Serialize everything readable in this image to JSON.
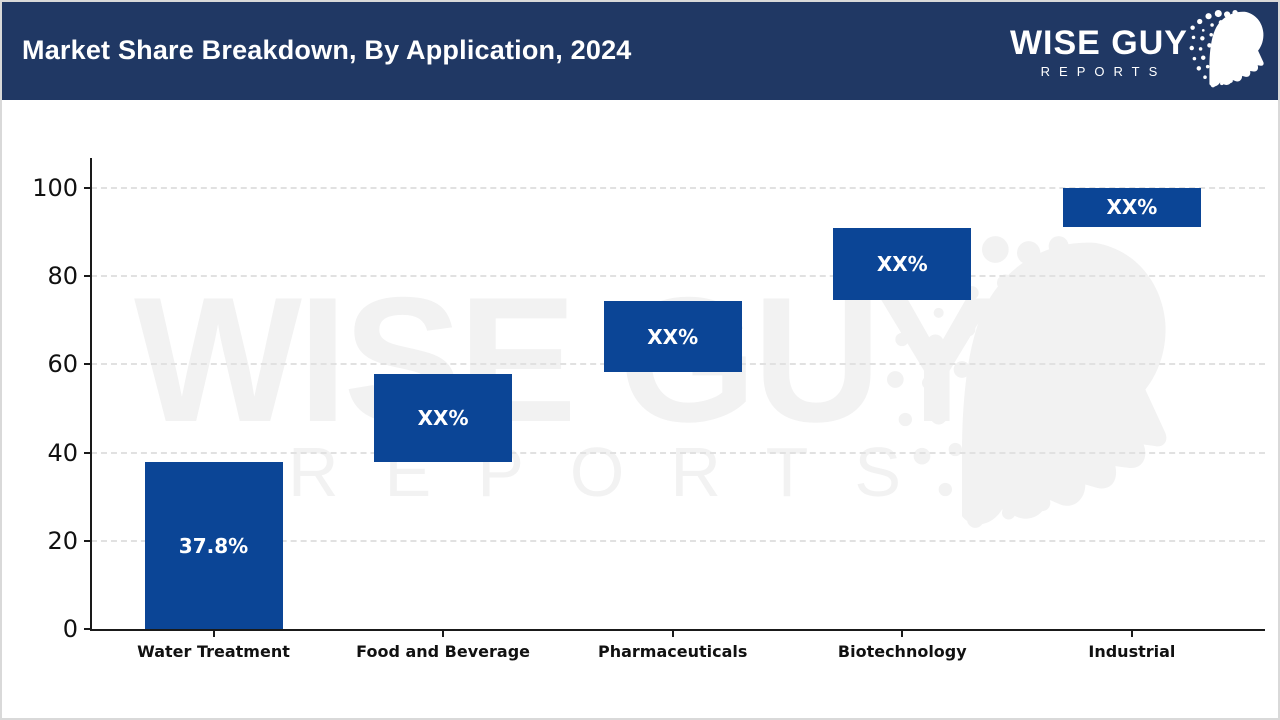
{
  "header": {
    "title": "Market Share Breakdown, By Application, 2024",
    "logo": {
      "line1": "WISE GUY",
      "line2": "REPORTS"
    }
  },
  "watermark": {
    "line1": "WISE GUY",
    "line2": "REPORTS"
  },
  "chart_data": {
    "type": "bar",
    "subtype": "waterfall",
    "title": "Market Share Breakdown, By Application, 2024",
    "xlabel": "",
    "ylabel": "",
    "categories": [
      "Water Treatment",
      "Food and Beverage",
      "Pharmaceuticals",
      "Biotechnology",
      "Industrial"
    ],
    "segments": [
      {
        "category": "Water Treatment",
        "start": 0,
        "end": 37.8,
        "label": "37.8%"
      },
      {
        "category": "Food and Beverage",
        "start": 37.9,
        "end": 57.9,
        "label": "XX%"
      },
      {
        "category": "Pharmaceuticals",
        "start": 58.2,
        "end": 74.4,
        "label": "XX%"
      },
      {
        "category": "Biotechnology",
        "start": 74.6,
        "end": 90.9,
        "label": "XX%"
      },
      {
        "category": "Industrial",
        "start": 91.2,
        "end": 100,
        "label": "XX%"
      }
    ],
    "yticks": [
      0,
      20,
      40,
      60,
      80,
      100
    ],
    "ylim": [
      0,
      107
    ],
    "grid": "dashed-horizontal",
    "legend": "none",
    "bar_color": "#0b4596",
    "bar_label_color": "#ffffff"
  },
  "colors": {
    "header_bg": "#203864",
    "bar": "#0b4596",
    "gridline": "#e1e1e1",
    "axis": "#1a1a1a",
    "text": "#111111",
    "watermark": "#f2f2f2",
    "page_border": "#d9d9d9"
  }
}
